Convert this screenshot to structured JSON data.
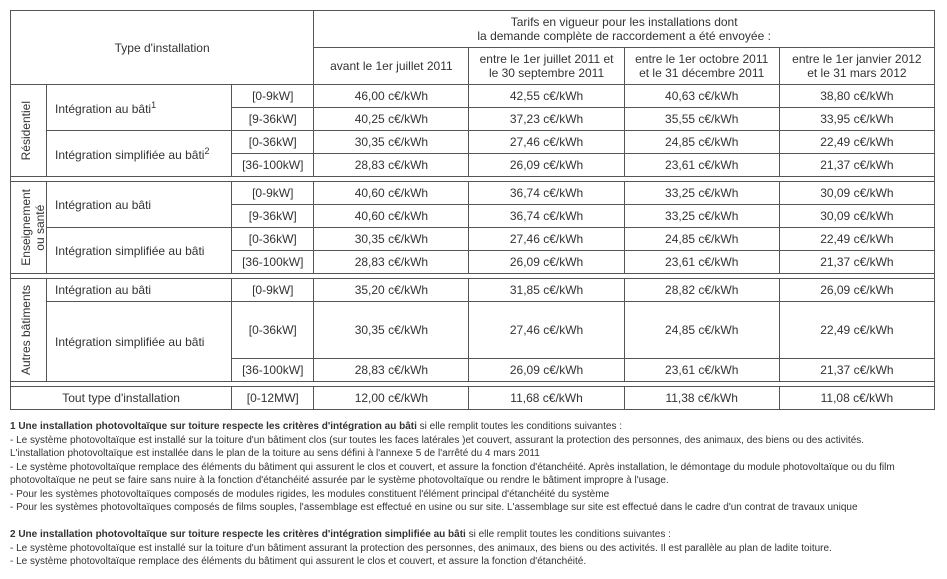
{
  "table": {
    "header": {
      "type_label": "Type d'installation",
      "tariff_title_l1": "Tarifs en vigueur pour les installations dont",
      "tariff_title_l2": "la demande complète de raccordement a été envoyée :",
      "periods": [
        "avant le 1er juillet 2011",
        "entre le 1er juillet 2011 et le 30 septembre 2011",
        "entre le 1er octobre 2011 et le 31 décembre 2011",
        "entre le 1er janvier 2012 et le 31 mars 2012"
      ]
    },
    "col_widths": [
      "36px",
      "185px",
      "82px",
      "155px",
      "155px",
      "155px",
      "155px"
    ],
    "sections": [
      {
        "label": "Résidentiel",
        "rows": [
          {
            "install": "Intégration au bâti",
            "sup": "1",
            "range": "[0-9kW]",
            "cells": [
              "46,00 c€/kWh",
              "42,55 c€/kWh",
              "40,63 c€/kWh",
              "38,80 c€/kWh"
            ]
          },
          {
            "install": "",
            "sup": "",
            "range": "[9-36kW]",
            "cells": [
              "40,25 c€/kWh",
              "37,23 c€/kWh",
              "35,55 c€/kWh",
              "33,95 c€/kWh"
            ]
          },
          {
            "install": "Intégration simplifiée au bâti",
            "sup": "2",
            "range": "[0-36kW]",
            "cells": [
              "30,35 c€/kWh",
              "27,46 c€/kWh",
              "24,85 c€/kWh",
              "22,49 c€/kWh"
            ]
          },
          {
            "install": "",
            "sup": "",
            "range": "[36-100kW]",
            "cells": [
              "28,83 c€/kWh",
              "26,09 c€/kWh",
              "23,61 c€/kWh",
              "21,37 c€/kWh"
            ]
          }
        ]
      },
      {
        "label": "Enseignement ou santé",
        "rows": [
          {
            "install": "Intégration au bâti",
            "sup": "",
            "range": "[0-9kW]",
            "cells": [
              "40,60 c€/kWh",
              "36,74 c€/kWh",
              "33,25 c€/kWh",
              "30,09 c€/kWh"
            ]
          },
          {
            "install": "",
            "sup": "",
            "range": "[9-36kW]",
            "cells": [
              "40,60 c€/kWh",
              "36,74 c€/kWh",
              "33,25 c€/kWh",
              "30,09 c€/kWh"
            ]
          },
          {
            "install": "Intégration simplifiée au bâti",
            "sup": "",
            "range": "[0-36kW]",
            "cells": [
              "30,35 c€/kWh",
              "27,46 c€/kWh",
              "24,85 c€/kWh",
              "22,49 c€/kWh"
            ]
          },
          {
            "install": "",
            "sup": "",
            "range": "[36-100kW]",
            "cells": [
              "28,83 c€/kWh",
              "26,09 c€/kWh",
              "23,61 c€/kWh",
              "21,37 c€/kWh"
            ]
          }
        ]
      },
      {
        "label": "Autres bâtiments",
        "rows": [
          {
            "install": "Intégration au bâti",
            "sup": "",
            "range": "[0-9kW]",
            "cells": [
              "35,20 c€/kWh",
              "31,85 c€/kWh",
              "28,82 c€/kWh",
              "26,09 c€/kWh"
            ]
          },
          {
            "install": "Intégration simplifiée au bâti",
            "sup": "",
            "range": "[0-36kW]",
            "cells": [
              "30,35 c€/kWh",
              "27,46 c€/kWh",
              "24,85 c€/kWh",
              "22,49 c€/kWh"
            ]
          },
          {
            "install": "",
            "sup": "",
            "range": "[36-100kW]",
            "cells": [
              "28,83 c€/kWh",
              "26,09 c€/kWh",
              "23,61 c€/kWh",
              "21,37 c€/kWh"
            ]
          }
        ]
      }
    ],
    "footer_row": {
      "install": "Tout type d'installation",
      "range": "[0-12MW]",
      "cells": [
        "12,00 c€/kWh",
        "11,68 c€/kWh",
        "11,38 c€/kWh",
        "11,08 c€/kWh"
      ]
    }
  },
  "notes": {
    "n1_lead": "1 Une installation photovoltaïque sur toiture respecte les critères d'intégration au bâti",
    "n1_tail": " si elle remplit toutes les conditions suivantes :",
    "n1_items": [
      "- Le système photovoltaïque est installé sur la toiture d'un bâtiment clos (sur toutes les faces latérales )et couvert, assurant la protection des personnes, des animaux, des biens ou des activités.",
      "L'installation photovoltaïque est installée dans le plan de la toiture au sens défini à l'annexe 5 de l'arrêté du 4 mars 2011",
      "- Le système photovoltaïque remplace des éléments du bâtiment qui assurent le clos et couvert, et assure la fonction d'étanchéité. Après installation, le démontage du module photovoltaïque ou du film photovoltaïque ne peut se faire sans nuire à la fonction d'étanchéité assurée par le système photovoltaïque ou rendre le bâtiment impropre à l'usage.",
      "- Pour les systèmes photovoltaïques composés de modules rigides, les modules constituent l'élément principal d'étanchéité du système",
      "- Pour les systèmes photovoltaïques composés de films souples, l'assemblage est effectué en usine ou sur site. L'assemblage sur site est effectué dans le cadre d'un contrat de travaux unique"
    ],
    "n2_lead": "2 Une installation photovoltaïque sur toiture respecte les critères d'intégration simplifiée au bâti",
    "n2_tail": " si elle remplit toutes les conditions suivantes :",
    "n2_items": [
      "- Le système photovoltaïque est installé sur la toiture d'un bâtiment assurant la protection des personnes, des animaux, des biens ou des activités. Il est parallèle au plan de ladite toiture.",
      "- Le système photovoltaïque remplace des éléments du bâtiment qui assurent le clos et couvert, et assure la fonction d'étanchéité."
    ]
  }
}
